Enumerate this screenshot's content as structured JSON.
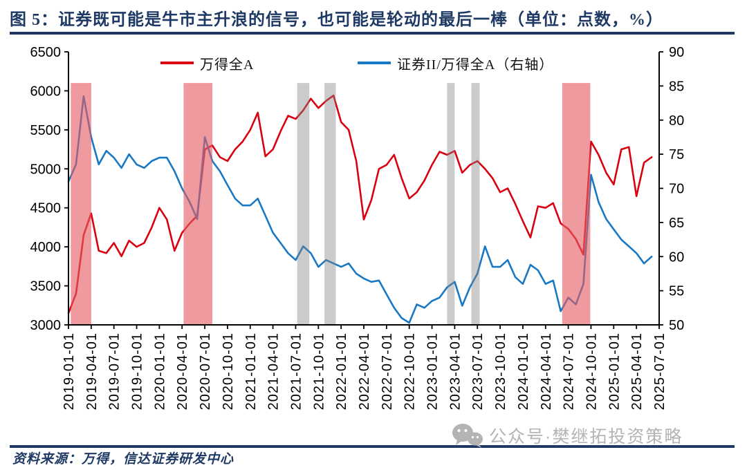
{
  "header": {
    "title": "图 5：证券既可能是牛市主升浪的信号，也可能是轮动的最后一棒（单位：点数，%）"
  },
  "footer": {
    "source": "资料来源：万得，信达证券研发中心",
    "watermark": "公众号·樊继拓投资策略",
    "watermark_icon": "wechat-icon"
  },
  "colors": {
    "accent_navy": "#1e3a64",
    "red_line": "#d9000f",
    "blue_line": "#1878c4",
    "pink_band": "#e45c63",
    "gray_band": "#828282",
    "axis_black": "#000000",
    "watermark_gray": "#b4b4b4"
  },
  "chart_data": {
    "type": "line",
    "title": "",
    "xlabel": "",
    "ylabel_left": "点数",
    "ylabel_right": "%",
    "grid": false,
    "legend_position": "top-center",
    "x_start": "2019-01",
    "x_freq": "monthly",
    "months": [
      "2019-01",
      "2019-02",
      "2019-03",
      "2019-04",
      "2019-05",
      "2019-06",
      "2019-07",
      "2019-08",
      "2019-09",
      "2019-10",
      "2019-11",
      "2019-12",
      "2020-01",
      "2020-02",
      "2020-03",
      "2020-04",
      "2020-05",
      "2020-06",
      "2020-07",
      "2020-08",
      "2020-09",
      "2020-10",
      "2020-11",
      "2020-12",
      "2021-01",
      "2021-02",
      "2021-03",
      "2021-04",
      "2021-05",
      "2021-06",
      "2021-07",
      "2021-08",
      "2021-09",
      "2021-10",
      "2021-11",
      "2021-12",
      "2022-01",
      "2022-02",
      "2022-03",
      "2022-04",
      "2022-05",
      "2022-06",
      "2022-07",
      "2022-08",
      "2022-09",
      "2022-10",
      "2022-11",
      "2022-12",
      "2023-01",
      "2023-02",
      "2023-03",
      "2023-04",
      "2023-05",
      "2023-06",
      "2023-07",
      "2023-08",
      "2023-09",
      "2023-10",
      "2023-11",
      "2023-12",
      "2024-01",
      "2024-02",
      "2024-03",
      "2024-04",
      "2024-05",
      "2024-06",
      "2024-07",
      "2024-08",
      "2024-09",
      "2024-10",
      "2024-11",
      "2024-12",
      "2025-01",
      "2025-02",
      "2025-03",
      "2025-04",
      "2025-05",
      "2025-06"
    ],
    "series": [
      {
        "name": "万得全A",
        "axis": "left",
        "color": "#d9000f",
        "values": [
          3150,
          3400,
          4150,
          4430,
          3950,
          3920,
          4050,
          3880,
          4080,
          4000,
          4050,
          4250,
          4500,
          4350,
          3950,
          4180,
          4300,
          4400,
          5250,
          5300,
          5150,
          5100,
          5250,
          5350,
          5500,
          5720,
          5160,
          5250,
          5480,
          5680,
          5640,
          5750,
          5900,
          5780,
          5870,
          5940,
          5600,
          5500,
          5100,
          4350,
          4600,
          5000,
          5050,
          5180,
          4880,
          4620,
          4700,
          4850,
          5050,
          5220,
          5180,
          5230,
          4950,
          5050,
          5100,
          5000,
          4880,
          4700,
          4750,
          4550,
          4330,
          4120,
          4520,
          4500,
          4560,
          4300,
          4230,
          4100,
          3900,
          5350,
          5180,
          4950,
          4800,
          5250,
          5280,
          4650,
          5080,
          5150
        ]
      },
      {
        "name": "证券II/万得全A（右轴）",
        "axis": "right",
        "color": "#1878c4",
        "values": [
          71,
          73.5,
          83.5,
          77.5,
          73.5,
          75.5,
          74.5,
          73,
          75,
          73.5,
          73,
          74,
          74.5,
          74.5,
          72.5,
          70,
          68,
          65.5,
          77.5,
          74,
          72.5,
          70.5,
          68.5,
          67.5,
          67.5,
          68.5,
          66,
          63.5,
          62,
          60.5,
          59.5,
          61.5,
          60.5,
          58.5,
          59.5,
          59,
          58.5,
          59,
          57.5,
          56.8,
          56.3,
          56.5,
          54.5,
          52.5,
          51,
          50.3,
          53,
          52.5,
          53.5,
          54,
          55.5,
          56.3,
          52.8,
          55.5,
          57.5,
          61.5,
          58.5,
          58.5,
          59.5,
          57,
          56,
          58.8,
          58,
          56,
          56.5,
          52,
          54,
          53,
          56,
          72,
          68,
          65.5,
          64,
          62.5,
          61.5,
          60.5,
          59,
          60
        ]
      }
    ],
    "axes": {
      "left": {
        "min": 3000,
        "max": 6500,
        "ticks": [
          6500,
          6000,
          5500,
          5000,
          4500,
          4000,
          3500,
          3000
        ]
      },
      "right": {
        "min": 50,
        "max": 90,
        "ticks": [
          90,
          85,
          80,
          75,
          70,
          65,
          60,
          55,
          50
        ]
      },
      "x_ticks": [
        "2019-01-01",
        "2019-04-01",
        "2019-07-01",
        "2019-10-01",
        "2020-01-01",
        "2020-04-01",
        "2020-07-01",
        "2020-10-01",
        "2021-01-01",
        "2021-04-01",
        "2021-07-01",
        "2021-10-01",
        "2022-01-01",
        "2022-04-01",
        "2022-07-01",
        "2022-10-01",
        "2023-01-01",
        "2023-04-01",
        "2023-07-01",
        "2023-10-01",
        "2024-01-01",
        "2024-04-01",
        "2024-07-01",
        "2024-10-01",
        "2025-01-01",
        "2025-04-01",
        "2025-07-01"
      ]
    },
    "bands": [
      {
        "kind": "pink",
        "from": "2019-01-10",
        "to": "2019-04-01",
        "from_m": 0.3,
        "to_m": 3.0,
        "top_value": 6100,
        "fill": "#e45c63",
        "opacity": 0.62
      },
      {
        "kind": "pink",
        "from": "2020-04-06",
        "to": "2020-08-01",
        "from_m": 15.2,
        "to_m": 19.0,
        "top_value": 6100,
        "fill": "#e45c63",
        "opacity": 0.62
      },
      {
        "kind": "gray",
        "from": "2021-07-06",
        "to": "2021-08-25",
        "from_m": 30.2,
        "to_m": 31.8,
        "top_value": 6100,
        "fill": "#828282",
        "opacity": 0.42
      },
      {
        "kind": "gray",
        "from": "2021-10-25",
        "to": "2021-12-10",
        "from_m": 33.8,
        "to_m": 35.3,
        "top_value": 6100,
        "fill": "#828282",
        "opacity": 0.42
      },
      {
        "kind": "gray",
        "from": "2023-03-01",
        "to": "2023-04-01",
        "from_m": 50.0,
        "to_m": 51.0,
        "top_value": 6100,
        "fill": "#828282",
        "opacity": 0.42
      },
      {
        "kind": "gray",
        "from": "2023-06-07",
        "to": "2023-07-09",
        "from_m": 53.2,
        "to_m": 54.3,
        "top_value": 6100,
        "fill": "#828282",
        "opacity": 0.42
      },
      {
        "kind": "pink",
        "from": "2024-06-07",
        "to": "2024-09-28",
        "from_m": 65.2,
        "to_m": 68.9,
        "top_value": 6100,
        "fill": "#e45c63",
        "opacity": 0.62
      }
    ]
  }
}
